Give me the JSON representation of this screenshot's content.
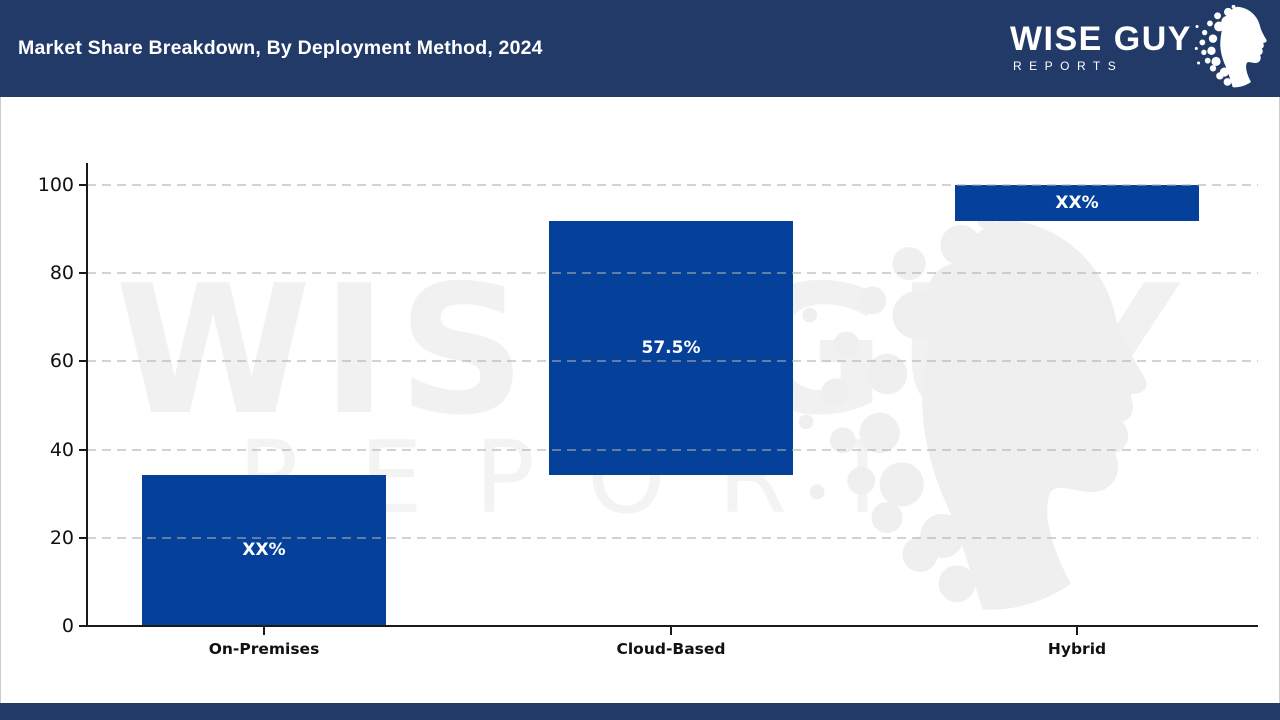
{
  "header": {
    "title": "Market Share Breakdown, By Deployment Method, 2024",
    "logo": {
      "line1": "WISE GUY",
      "line2": "REPORTS"
    }
  },
  "watermark": {
    "line1": "WISE GUY",
    "line2": "REPORTS"
  },
  "chart_data": {
    "type": "bar",
    "subtype": "floating-waterfall",
    "title": "Market Share Breakdown, By Deployment Method, 2024",
    "categories": [
      "On-Premises",
      "Cloud-Based",
      "Hybrid"
    ],
    "series": [
      {
        "name": "Market share (%)",
        "segments": [
          {
            "category": "On-Premises",
            "from": 0,
            "to": 34.25,
            "label": "XX%"
          },
          {
            "category": "Cloud-Based",
            "from": 34.25,
            "to": 91.75,
            "label": "57.5%"
          },
          {
            "category": "Hybrid",
            "from": 91.75,
            "to": 100,
            "label": "XX%"
          }
        ]
      }
    ],
    "ylim": [
      0,
      100
    ],
    "yticks": [
      0,
      20,
      40,
      60,
      80,
      100
    ],
    "xlabel": "",
    "ylabel": "",
    "grid": "horizontal-dashed",
    "legend": "none"
  },
  "colors": {
    "header_bg": "#223A68",
    "footer_bg": "#223A68",
    "bar": "#05409B",
    "axis": "#1A1A1A",
    "grid": "#D9D9D9",
    "watermark": "#F1F1F1"
  }
}
